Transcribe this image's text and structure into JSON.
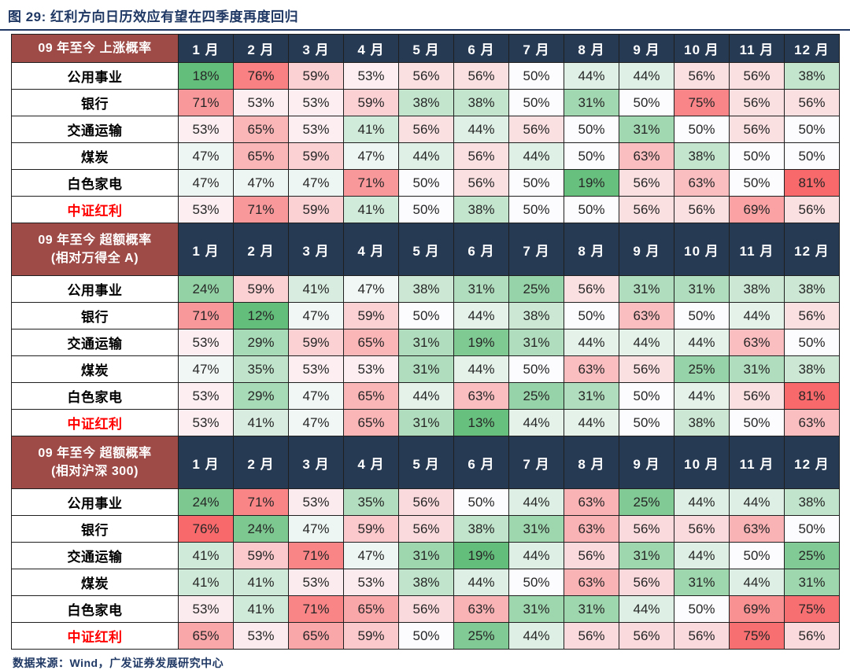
{
  "title": "图 29:  红利方向日历效应有望在四季度再度回归",
  "source": "数据来源：Wind，广发证券发展研究中心",
  "colors": {
    "title_text": "#1F3864",
    "rule": "#1F3864",
    "section_header_bg": "#9E4B48",
    "month_header_bg": "#263A54",
    "header_text": "#FFFFFF",
    "border": "#1F1F1F",
    "value_text": "#262626",
    "label_text": "#000000",
    "highlight_label_text": "#FF0000",
    "heat_low": "#63BE7B",
    "heat_mid": "#FCFCFF",
    "heat_high": "#F8696B"
  },
  "layout": {
    "label_col_width": 212,
    "month_col_width": 70,
    "data_row_height": 34,
    "header_row_height_1line": 36,
    "header_row_height_2line": 67
  },
  "chart_data": {
    "type": "heatmap",
    "title": "红利方向日历效应有望在四季度再度回归",
    "unit": "%",
    "color_scale": {
      "low": "#63BE7B",
      "mid": "#FCFCFF",
      "high": "#F8696B",
      "midpoint": 50,
      "note": "per-section min/max, diverging green-white-red"
    },
    "columns": [
      "1 月",
      "2 月",
      "3 月",
      "4 月",
      "5 月",
      "6 月",
      "7 月",
      "8 月",
      "9 月",
      "10 月",
      "11 月",
      "12 月"
    ],
    "sections": [
      {
        "header_lines": [
          "09 年至今 上涨概率"
        ],
        "rows": [
          {
            "label": "公用事业",
            "highlight": false,
            "values": [
              18,
              76,
              59,
              53,
              56,
              56,
              50,
              44,
              44,
              56,
              56,
              38
            ]
          },
          {
            "label": "银行",
            "highlight": false,
            "values": [
              71,
              53,
              53,
              59,
              38,
              38,
              50,
              31,
              50,
              75,
              56,
              56
            ]
          },
          {
            "label": "交通运输",
            "highlight": false,
            "values": [
              53,
              65,
              53,
              41,
              56,
              44,
              56,
              50,
              31,
              50,
              56,
              50
            ]
          },
          {
            "label": "煤炭",
            "highlight": false,
            "values": [
              47,
              65,
              59,
              47,
              44,
              56,
              44,
              50,
              63,
              38,
              50,
              50
            ]
          },
          {
            "label": "白色家电",
            "highlight": false,
            "values": [
              47,
              47,
              47,
              71,
              50,
              56,
              50,
              19,
              56,
              63,
              50,
              81
            ]
          },
          {
            "label": "中证红利",
            "highlight": true,
            "values": [
              53,
              71,
              59,
              41,
              50,
              38,
              50,
              50,
              56,
              56,
              69,
              56
            ]
          }
        ]
      },
      {
        "header_lines": [
          "09 年至今 超额概率",
          "(相对万得全 A)"
        ],
        "rows": [
          {
            "label": "公用事业",
            "highlight": false,
            "values": [
              24,
              59,
              41,
              47,
              38,
              31,
              25,
              56,
              31,
              31,
              38,
              38
            ]
          },
          {
            "label": "银行",
            "highlight": false,
            "values": [
              71,
              12,
              47,
              59,
              50,
              44,
              38,
              50,
              63,
              50,
              44,
              56
            ]
          },
          {
            "label": "交通运输",
            "highlight": false,
            "values": [
              53,
              29,
              59,
              65,
              31,
              19,
              31,
              44,
              44,
              44,
              63,
              50
            ]
          },
          {
            "label": "煤炭",
            "highlight": false,
            "values": [
              47,
              35,
              53,
              53,
              31,
              44,
              50,
              63,
              56,
              25,
              31,
              38
            ]
          },
          {
            "label": "白色家电",
            "highlight": false,
            "values": [
              53,
              29,
              47,
              65,
              44,
              63,
              25,
              31,
              50,
              44,
              56,
              81
            ]
          },
          {
            "label": "中证红利",
            "highlight": true,
            "values": [
              53,
              41,
              47,
              65,
              31,
              13,
              44,
              44,
              50,
              38,
              50,
              63
            ]
          }
        ]
      },
      {
        "header_lines": [
          "09 年至今 超额概率",
          "(相对沪深 300)"
        ],
        "rows": [
          {
            "label": "公用事业",
            "highlight": false,
            "values": [
              24,
              71,
              53,
              35,
              56,
              50,
              44,
              63,
              25,
              44,
              44,
              38
            ]
          },
          {
            "label": "银行",
            "highlight": false,
            "values": [
              76,
              24,
              47,
              59,
              56,
              38,
              31,
              63,
              56,
              56,
              63,
              50
            ]
          },
          {
            "label": "交通运输",
            "highlight": false,
            "values": [
              41,
              59,
              71,
              47,
              31,
              19,
              44,
              56,
              31,
              44,
              50,
              25
            ]
          },
          {
            "label": "煤炭",
            "highlight": false,
            "values": [
              41,
              41,
              53,
              53,
              38,
              44,
              50,
              63,
              56,
              31,
              44,
              31
            ]
          },
          {
            "label": "白色家电",
            "highlight": false,
            "values": [
              53,
              41,
              71,
              65,
              56,
              63,
              31,
              31,
              44,
              50,
              69,
              75
            ]
          },
          {
            "label": "中证红利",
            "highlight": true,
            "values": [
              65,
              53,
              65,
              59,
              50,
              25,
              44,
              56,
              56,
              56,
              75,
              56
            ]
          }
        ]
      }
    ]
  }
}
